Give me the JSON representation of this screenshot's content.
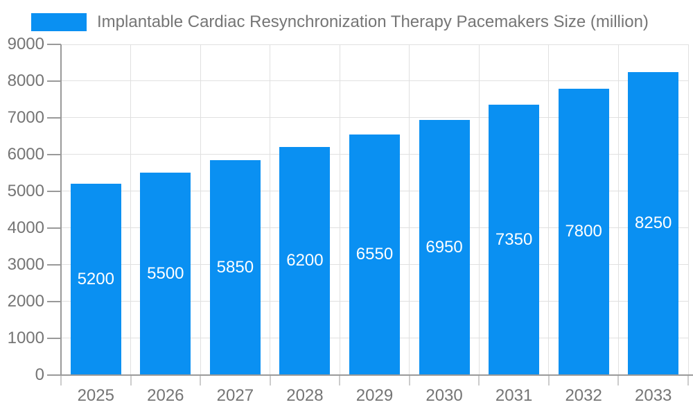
{
  "legend": {
    "label": "Implantable Cardiac Resynchronization Therapy Pacemakers Size (million)"
  },
  "chart_data": {
    "type": "bar",
    "title": "Implantable Cardiac Resynchronization Therapy Pacemakers Size (million)",
    "categories": [
      "2025",
      "2026",
      "2027",
      "2028",
      "2029",
      "2030",
      "2031",
      "2032",
      "2033"
    ],
    "series": [
      {
        "name": "Implantable Cardiac Resynchronization Therapy Pacemakers Size (million)",
        "values": [
          5200,
          5500,
          5850,
          6200,
          6550,
          6950,
          7350,
          7800,
          8250
        ]
      }
    ],
    "xlabel": "",
    "ylabel": "",
    "ylim": [
      0,
      9000
    ],
    "yticks": [
      0,
      1000,
      2000,
      3000,
      4000,
      5000,
      6000,
      7000,
      8000,
      9000
    ],
    "grid": true,
    "legend_position": "top",
    "value_label_position": "inside-center"
  },
  "colors": {
    "bar": "#0a90f2",
    "axis_line": "#999999",
    "x_tick": "#cccccc",
    "grid_line": "#e0e0e0",
    "axis_text": "#757575",
    "value_text": "#ffffff",
    "background": "#ffffff"
  }
}
